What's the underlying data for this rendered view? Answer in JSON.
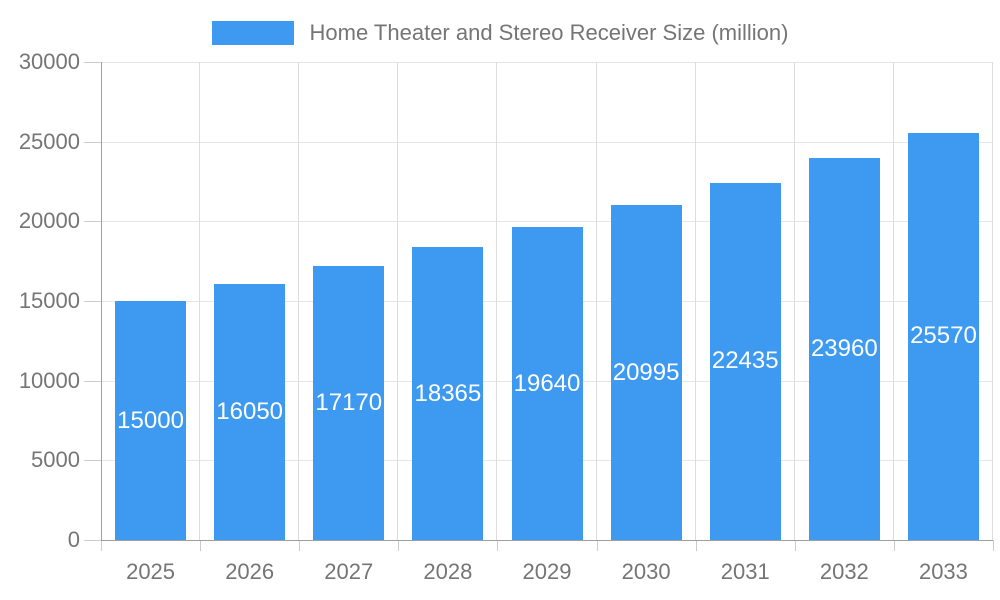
{
  "legend": {
    "label": "Home Theater and Stereo Receiver Size (million)"
  },
  "chart_data": {
    "type": "bar",
    "title": "Home Theater and Stereo Receiver Size (million)",
    "categories": [
      "2025",
      "2026",
      "2027",
      "2028",
      "2029",
      "2030",
      "2031",
      "2032",
      "2033"
    ],
    "values": [
      15000,
      16050,
      17170,
      18365,
      19640,
      20995,
      22435,
      23960,
      25570
    ],
    "xlabel": "",
    "ylabel": "",
    "ylim": [
      0,
      30000
    ],
    "yticks": [
      0,
      5000,
      10000,
      15000,
      20000,
      25000,
      30000
    ],
    "bar_color": "#3D9AF0",
    "value_labels": "inside-center",
    "legend_position": "top",
    "grid": true
  },
  "colors": {
    "bar": "#3D9AF0",
    "axis_label": "#757575",
    "value_label": "#ffffff",
    "grid_horizontal": "#e6e6e6",
    "grid_vertical": "#dcdcdc",
    "axis_line": "#9e9e9e",
    "tick": "#cccccc",
    "background": "#ffffff"
  }
}
